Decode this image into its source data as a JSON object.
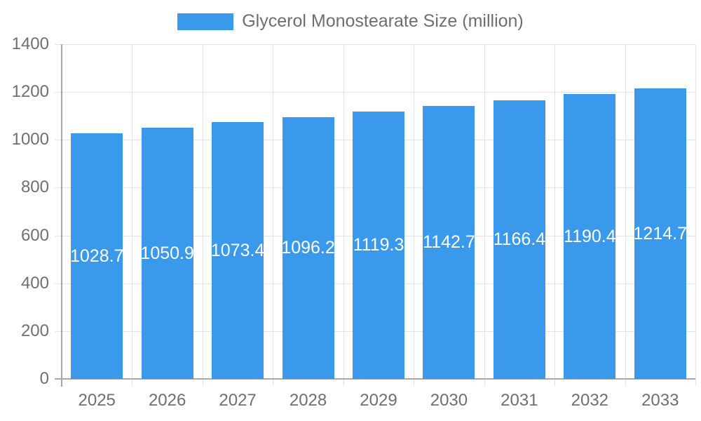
{
  "chart_data": {
    "type": "bar",
    "title": "Glycerol Monostearate Size (million)",
    "categories": [
      "2025",
      "2026",
      "2027",
      "2028",
      "2029",
      "2030",
      "2031",
      "2032",
      "2033"
    ],
    "values": [
      1028.7,
      1050.9,
      1073.4,
      1096.2,
      1119.3,
      1142.7,
      1166.4,
      1190.4,
      1214.7
    ],
    "value_label_decimals": 1,
    "ylim": [
      0,
      1400
    ],
    "yticks": [
      0,
      200,
      400,
      600,
      800,
      1000,
      1200,
      1400
    ],
    "grid": true,
    "legend_position": "top",
    "colors": {
      "bar": "#3B99EC",
      "value_label": "#FFFFFF",
      "gridline": "#E3E3E3",
      "axis": "#A8A8A8",
      "tick_label": "#6F6F6F",
      "legend_text": "#6E6E6E",
      "background": "#FFFFFF"
    }
  }
}
